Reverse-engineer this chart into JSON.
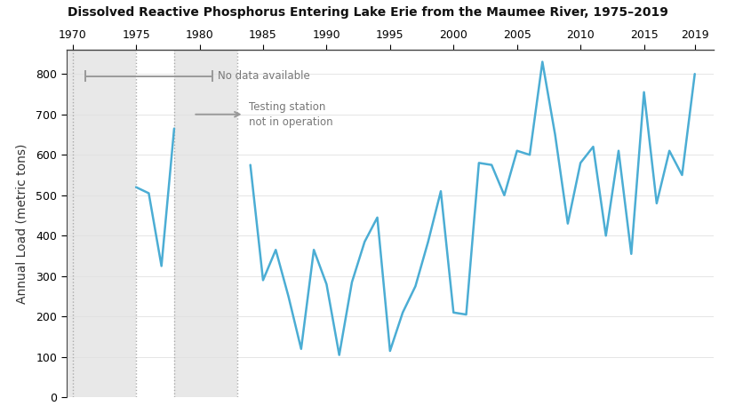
{
  "title": "Dissolved Reactive Phosphorus Entering Lake Erie from the Maumee River, 1975–2019",
  "ylabel": "Annual Load (metric tons)",
  "background_color": "#ffffff",
  "plot_bg_color": "#ffffff",
  "shaded_region1": [
    1969.5,
    1975
  ],
  "shaded_region2": [
    1978,
    1983
  ],
  "shaded_color": "#e8e8e8",
  "dashed_lines": [
    1970,
    1975,
    1978,
    1983
  ],
  "line_color": "#4badd4",
  "legend_line_color": "#999999",
  "xlim": [
    1969.5,
    2020.5
  ],
  "ylim": [
    0,
    860
  ],
  "xticks": [
    1970,
    1975,
    1980,
    1985,
    1990,
    1995,
    2000,
    2005,
    2010,
    2015,
    2019
  ],
  "yticks": [
    0,
    100,
    200,
    300,
    400,
    500,
    600,
    700,
    800
  ],
  "years": [
    1975,
    1976,
    1977,
    1978,
    1979,
    1980,
    1981,
    1982,
    1983,
    1984,
    1985,
    1986,
    1987,
    1988,
    1989,
    1990,
    1991,
    1992,
    1993,
    1994,
    1995,
    1996,
    1997,
    1998,
    1999,
    2000,
    2001,
    2002,
    2003,
    2004,
    2005,
    2006,
    2007,
    2008,
    2009,
    2010,
    2011,
    2012,
    2013,
    2014,
    2015,
    2016,
    2017,
    2018,
    2019
  ],
  "values": [
    520,
    505,
    325,
    665,
    null,
    null,
    null,
    null,
    null,
    575,
    290,
    365,
    250,
    120,
    365,
    280,
    105,
    285,
    385,
    445,
    115,
    210,
    275,
    385,
    510,
    210,
    205,
    580,
    575,
    500,
    610,
    600,
    830,
    650,
    430,
    580,
    620,
    400,
    610,
    355,
    755,
    480,
    610,
    550,
    800
  ],
  "no_data_x1": 1971,
  "no_data_x2": 1981,
  "no_data_y": 795,
  "testing_x1": 1979.5,
  "testing_x2": 1983.5,
  "testing_y": 700,
  "legend_no_data_text": "No data available",
  "legend_testing_text": "Testing station\nnot in operation"
}
